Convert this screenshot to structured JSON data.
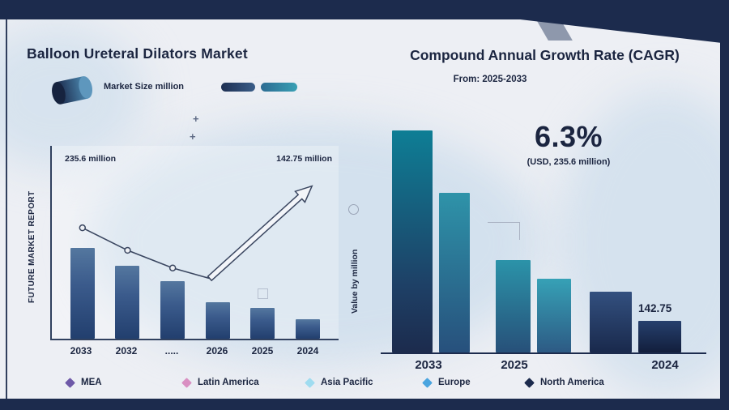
{
  "colors": {
    "navy": "#1c2b4d",
    "teal": "#1c7f95",
    "background": "#edeff4"
  },
  "deco": {
    "plus": "+"
  },
  "market_size_legend_label": "Market Size million",
  "chart_data": [
    {
      "id": "market-size-forecast",
      "type": "bar",
      "title": "Balloon Ureteral Dilators Market",
      "ylabel": "FUTURE MARKET REPORT",
      "xlabel": "",
      "categories": [
        "2033",
        "2032",
        ".....",
        "2026",
        "2025",
        "2024"
      ],
      "bars_height_pct": [
        47,
        38,
        30,
        19,
        16,
        10
      ],
      "values_million_labeled": {
        "2024": 142.75,
        "2033": 235.6
      },
      "annotations": [
        {
          "text": "235.6 million",
          "position": "top-left"
        },
        {
          "text": "142.75 million",
          "position": "top-right"
        }
      ],
      "overlay": "trend line with circle markers and rising outline arrow",
      "grid": false,
      "legend_position": "none"
    },
    {
      "id": "cagr",
      "type": "bar",
      "title": "Compound Annual Growth Rate (CAGR)",
      "subtitle": "From: 2025-2033",
      "ylabel": "Value by million",
      "xlabel": "",
      "categories": [
        "2033",
        "2025",
        "2024"
      ],
      "series": [
        {
          "name": "series-a",
          "bars_height_pct": [
            99,
            41,
            27
          ]
        },
        {
          "name": "series-b",
          "bars_height_pct": [
            71,
            33,
            14
          ]
        }
      ],
      "cagr_value": "6.3%",
      "cagr_caption": "(USD, 235.6 million)",
      "bar_label": "142.75",
      "grid": false,
      "legend_position": "none"
    }
  ],
  "legend": {
    "items": [
      {
        "label": "MEA",
        "color": "#6e59a8"
      },
      {
        "label": "Latin America",
        "color": "#d98fc2"
      },
      {
        "label": "Asia Pacific",
        "color": "#9fdcf0"
      },
      {
        "label": "Europe",
        "color": "#49a4df"
      },
      {
        "label": "North America",
        "color": "#1c2b4d"
      }
    ]
  }
}
